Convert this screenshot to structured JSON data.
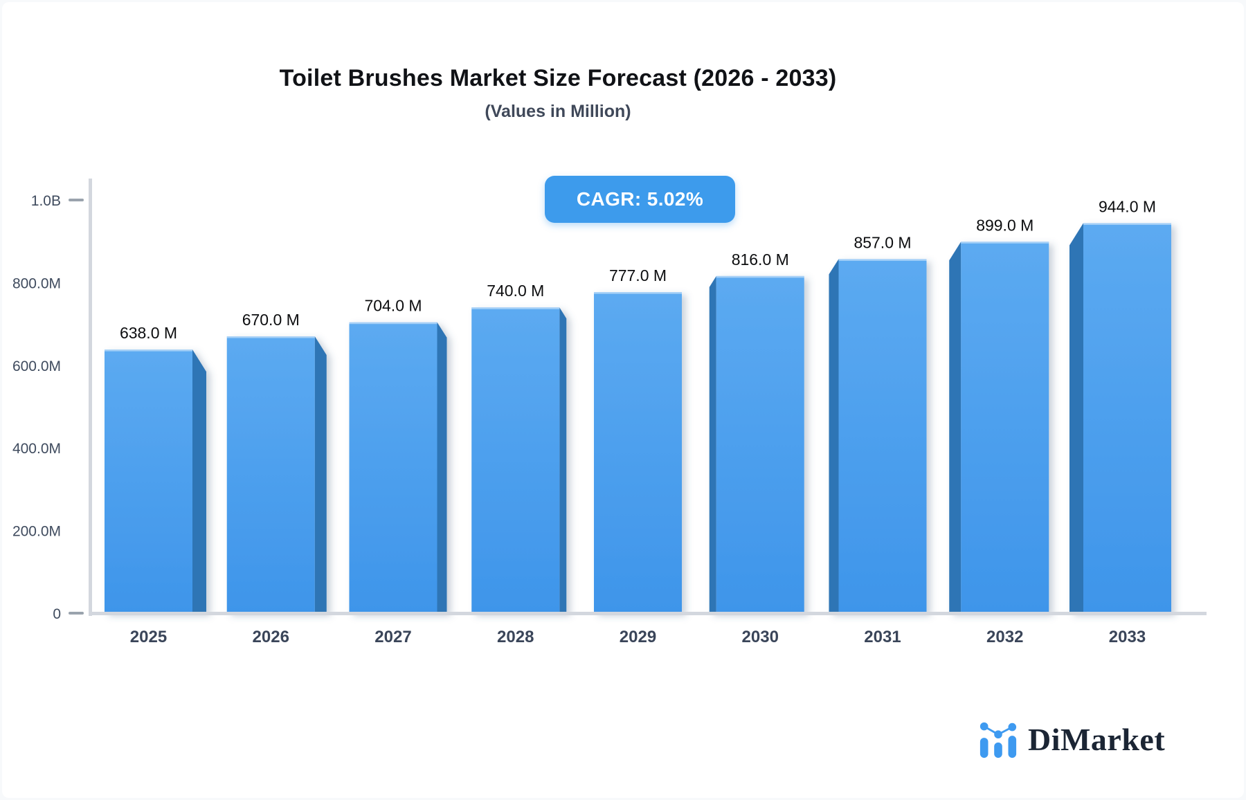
{
  "header": {
    "title": "Toilet Brushes Market Size Forecast (2026 - 2033)",
    "subtitle": "(Values in Million)"
  },
  "badge": {
    "label": "CAGR: 5.02%",
    "bg_color": "#3d9bec",
    "text_color": "#ffffff"
  },
  "chart_data": {
    "type": "bar",
    "title": "Toilet Brushes Market Size Forecast (2026 - 2033)",
    "subtitle": "(Values in Million)",
    "categories": [
      "2025",
      "2026",
      "2027",
      "2028",
      "2029",
      "2030",
      "2031",
      "2032",
      "2033"
    ],
    "values": [
      638,
      670,
      704,
      740,
      777,
      816,
      857,
      899,
      944
    ],
    "value_labels": [
      "638.0 M",
      "670.0 M",
      "704.0 M",
      "740.0 M",
      "777.0 M",
      "816.0 M",
      "857.0 M",
      "899.0 M",
      "944.0 M"
    ],
    "unit_suffix": "M",
    "xlabel": "",
    "ylabel": "",
    "ylim": [
      0,
      1000
    ],
    "yticks": [
      {
        "value": 0,
        "label": "0"
      },
      {
        "value": 200,
        "label": "200.0M"
      },
      {
        "value": 400,
        "label": "400.0M"
      },
      {
        "value": 600,
        "label": "600.0M"
      },
      {
        "value": 800,
        "label": "800.0M"
      },
      {
        "value": 1000,
        "label": "1.0B"
      }
    ],
    "grid": false,
    "legend": "none",
    "colors": {
      "bar_front_top": "#5caaf1",
      "bar_front_bottom": "#3e95ea",
      "bar_side": "#2e74b5",
      "axis_line": "#d3d7de",
      "tick_dash": "#9aa3ad",
      "tick_label": "#3f4b5e",
      "category_label": "#3a4559",
      "value_label": "#0c0d0f"
    }
  },
  "logo": {
    "text": "DiMarket",
    "icon": "bar-chart-logo-icon",
    "text_color": "#1b2534",
    "icon_color": "#3e9af0"
  }
}
